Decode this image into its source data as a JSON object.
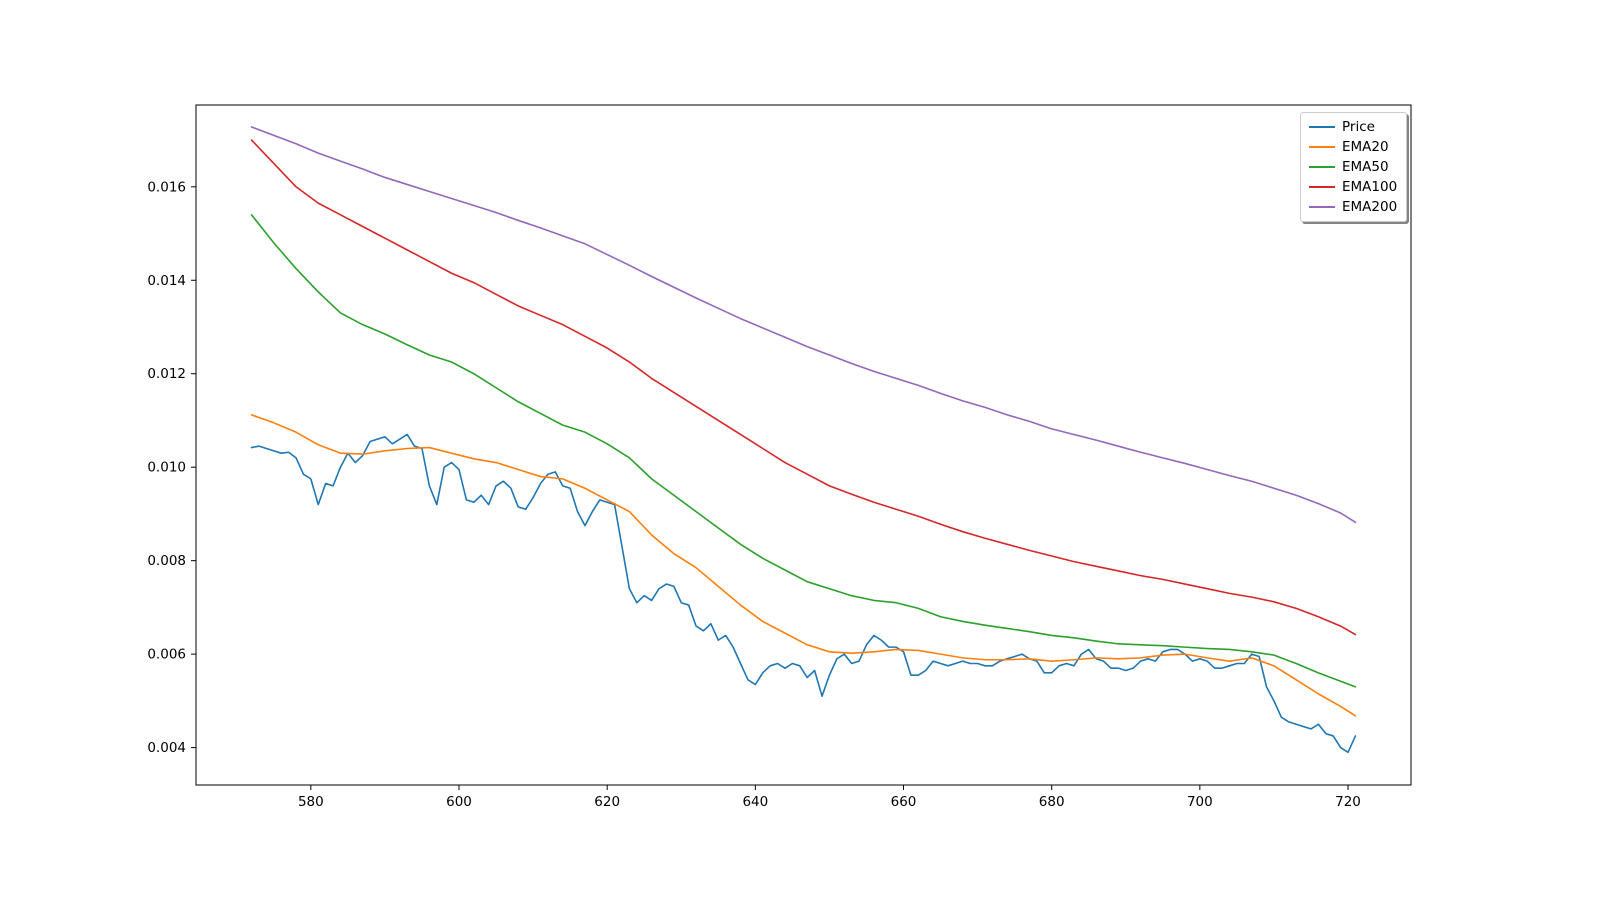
{
  "figure": {
    "background": "#ffffff"
  },
  "chart_data": {
    "type": "line",
    "title": "",
    "xlabel": "",
    "ylabel": "",
    "xlim": [
      564.5,
      728.5
    ],
    "ylim": [
      0.0032,
      0.01775
    ],
    "xticks": [
      580,
      600,
      620,
      640,
      660,
      680,
      700,
      720
    ],
    "yticks": [
      0.004,
      0.006,
      0.008,
      0.01,
      0.012,
      0.014,
      0.016
    ],
    "grid": false,
    "legend": {
      "position": "upper right",
      "entries": [
        "Price",
        "EMA20",
        "EMA50",
        "EMA100",
        "EMA200"
      ]
    },
    "ema_x": [
      572,
      575,
      578,
      581,
      584,
      587,
      590,
      593,
      596,
      599,
      602,
      605,
      608,
      611,
      614,
      617,
      620,
      623,
      626,
      629,
      632,
      635,
      638,
      641,
      644,
      647,
      650,
      653,
      656,
      659,
      662,
      665,
      668,
      671,
      674,
      677,
      680,
      683,
      686,
      689,
      692,
      695,
      698,
      701,
      704,
      707,
      710,
      713,
      716,
      719,
      721
    ],
    "series": [
      {
        "name": "Price",
        "color": "#1f77b4",
        "x_start": 572,
        "x_step": 1,
        "y": [
          0.01042,
          0.01045,
          0.0104,
          0.01035,
          0.0103,
          0.01032,
          0.0102,
          0.00985,
          0.00975,
          0.0092,
          0.00965,
          0.0096,
          0.01,
          0.0103,
          0.0101,
          0.01025,
          0.01055,
          0.0106,
          0.01065,
          0.0105,
          0.0106,
          0.0107,
          0.01045,
          0.0104,
          0.0096,
          0.0092,
          0.01,
          0.0101,
          0.00995,
          0.0093,
          0.00925,
          0.0094,
          0.0092,
          0.0096,
          0.0097,
          0.00955,
          0.00915,
          0.0091,
          0.00935,
          0.00965,
          0.00985,
          0.0099,
          0.0096,
          0.00955,
          0.00905,
          0.00875,
          0.00905,
          0.0093,
          0.00925,
          0.0092,
          0.0083,
          0.0074,
          0.0071,
          0.00725,
          0.00715,
          0.0074,
          0.0075,
          0.00745,
          0.0071,
          0.00705,
          0.0066,
          0.0065,
          0.00665,
          0.0063,
          0.0064,
          0.00615,
          0.0058,
          0.00545,
          0.00535,
          0.0056,
          0.00575,
          0.0058,
          0.0057,
          0.0058,
          0.00575,
          0.0055,
          0.00565,
          0.0051,
          0.00555,
          0.0059,
          0.006,
          0.0058,
          0.00585,
          0.0062,
          0.0064,
          0.0063,
          0.00615,
          0.00615,
          0.00605,
          0.00555,
          0.00555,
          0.00565,
          0.00585,
          0.0058,
          0.00575,
          0.0058,
          0.00585,
          0.0058,
          0.0058,
          0.00575,
          0.00575,
          0.00585,
          0.0059,
          0.00595,
          0.006,
          0.0059,
          0.00585,
          0.0056,
          0.0056,
          0.00575,
          0.0058,
          0.00575,
          0.006,
          0.0061,
          0.0059,
          0.00585,
          0.0057,
          0.0057,
          0.00565,
          0.0057,
          0.00585,
          0.0059,
          0.00585,
          0.00605,
          0.0061,
          0.0061,
          0.006,
          0.00585,
          0.0059,
          0.00585,
          0.0057,
          0.0057,
          0.00575,
          0.0058,
          0.0058,
          0.006,
          0.00595,
          0.0053,
          0.005,
          0.00465,
          0.00455,
          0.0045,
          0.00445,
          0.0044,
          0.0045,
          0.0043,
          0.00425,
          0.004,
          0.0039,
          0.00425
        ]
      },
      {
        "name": "EMA20",
        "color": "#ff7f0e",
        "x_ref": "ema_x",
        "y": [
          0.01112,
          0.01095,
          0.01075,
          0.01048,
          0.0103,
          0.01028,
          0.01035,
          0.0104,
          0.01042,
          0.0103,
          0.01018,
          0.0101,
          0.00995,
          0.0098,
          0.00975,
          0.00955,
          0.0093,
          0.00905,
          0.00855,
          0.00815,
          0.00785,
          0.00745,
          0.00705,
          0.0067,
          0.00645,
          0.0062,
          0.00605,
          0.00602,
          0.00605,
          0.0061,
          0.00608,
          0.006,
          0.00592,
          0.00588,
          0.00588,
          0.0059,
          0.00585,
          0.00588,
          0.00592,
          0.0059,
          0.00592,
          0.00598,
          0.006,
          0.00592,
          0.00585,
          0.00592,
          0.00575,
          0.00545,
          0.00515,
          0.00488,
          0.00468
        ]
      },
      {
        "name": "EMA50",
        "color": "#2ca02c",
        "x_ref": "ema_x",
        "y": [
          0.0154,
          0.0148,
          0.01425,
          0.01375,
          0.0133,
          0.01305,
          0.01285,
          0.01262,
          0.0124,
          0.01225,
          0.012,
          0.0117,
          0.0114,
          0.01115,
          0.0109,
          0.01075,
          0.0105,
          0.0102,
          0.00975,
          0.0094,
          0.00905,
          0.0087,
          0.00835,
          0.00805,
          0.0078,
          0.00755,
          0.0074,
          0.00725,
          0.00715,
          0.0071,
          0.00698,
          0.0068,
          0.0067,
          0.00662,
          0.00655,
          0.00648,
          0.0064,
          0.00635,
          0.00628,
          0.00622,
          0.0062,
          0.00618,
          0.00615,
          0.00612,
          0.0061,
          0.00605,
          0.00598,
          0.0058,
          0.0056,
          0.00542,
          0.0053
        ]
      },
      {
        "name": "EMA100",
        "color": "#d62728",
        "x_ref": "ema_x",
        "y": [
          0.017,
          0.0165,
          0.016,
          0.01565,
          0.0154,
          0.01515,
          0.0149,
          0.01465,
          0.0144,
          0.01415,
          0.01395,
          0.0137,
          0.01345,
          0.01325,
          0.01305,
          0.0128,
          0.01255,
          0.01225,
          0.0119,
          0.0116,
          0.0113,
          0.011,
          0.0107,
          0.0104,
          0.0101,
          0.00985,
          0.0096,
          0.00942,
          0.00925,
          0.0091,
          0.00895,
          0.00878,
          0.00862,
          0.00848,
          0.00835,
          0.00822,
          0.0081,
          0.00798,
          0.00788,
          0.00778,
          0.00768,
          0.0076,
          0.0075,
          0.0074,
          0.0073,
          0.00722,
          0.00712,
          0.00698,
          0.0068,
          0.0066,
          0.00642
        ]
      },
      {
        "name": "EMA200",
        "color": "#9467bd",
        "x_ref": "ema_x",
        "y": [
          0.01728,
          0.0171,
          0.01692,
          0.01672,
          0.01655,
          0.01638,
          0.0162,
          0.01605,
          0.0159,
          0.01575,
          0.0156,
          0.01545,
          0.01528,
          0.01512,
          0.01495,
          0.01478,
          0.01455,
          0.01432,
          0.01408,
          0.01385,
          0.01362,
          0.0134,
          0.01318,
          0.01298,
          0.01278,
          0.01258,
          0.0124,
          0.01222,
          0.01205,
          0.0119,
          0.01175,
          0.01158,
          0.01142,
          0.01128,
          0.01112,
          0.01098,
          0.01082,
          0.0107,
          0.01058,
          0.01045,
          0.01032,
          0.0102,
          0.01008,
          0.00995,
          0.00982,
          0.0097,
          0.00955,
          0.0094,
          0.00922,
          0.00902,
          0.00882
        ]
      }
    ]
  }
}
